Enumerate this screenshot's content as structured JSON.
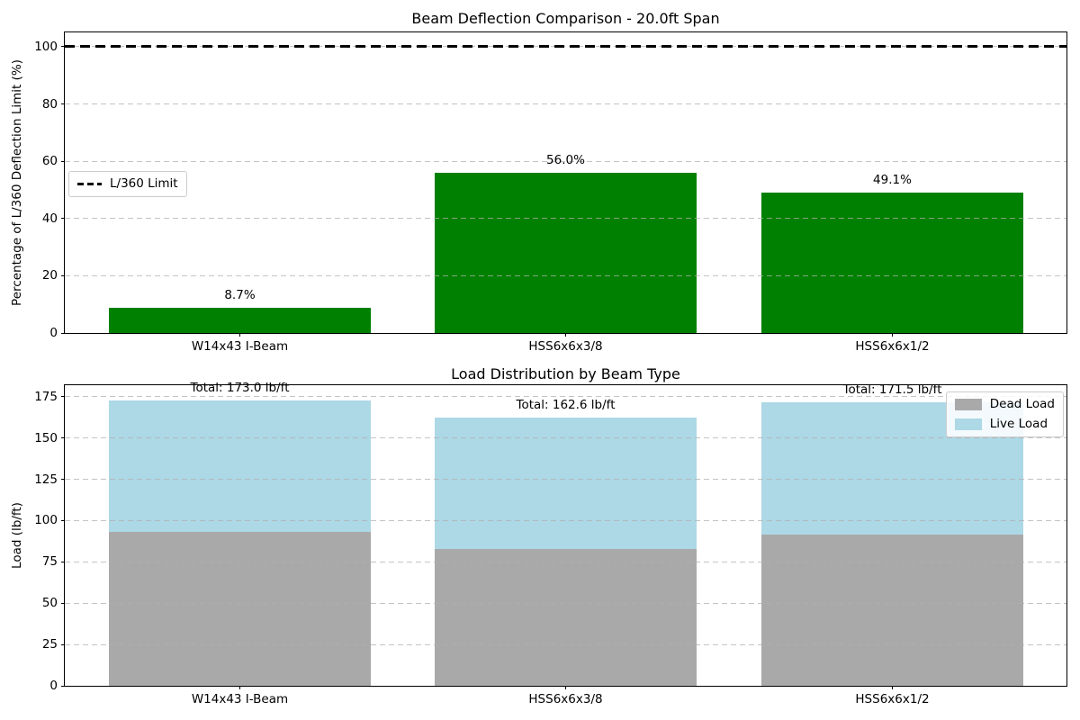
{
  "chart_data": [
    {
      "type": "bar",
      "title": "Beam Deflection Comparison - 20.0ft Span",
      "ylabel": "Percentage of L/360 Deflection Limit (%)",
      "categories": [
        "W14x43 I-Beam",
        "HSS6x6x3/8",
        "HSS6x6x1/2"
      ],
      "values": [
        8.7,
        56.0,
        49.1
      ],
      "bar_labels": [
        "8.7%",
        "56.0%",
        "49.1%"
      ],
      "bar_color": "#008000",
      "ylim": [
        0,
        105
      ],
      "yticks": [
        0,
        20,
        40,
        60,
        80,
        100
      ],
      "grid": "horizontal-dashed",
      "limit_line": {
        "value": 100,
        "color": "#000000",
        "style": "dashed",
        "legend_label": "L/360 Limit"
      },
      "legend_position": "center-left"
    },
    {
      "type": "stacked-bar",
      "title": "Load Distribution by Beam Type",
      "ylabel": "Load (lb/ft)",
      "categories": [
        "W14x43 I-Beam",
        "HSS6x6x3/8",
        "HSS6x6x1/2"
      ],
      "series": [
        {
          "name": "Dead Load",
          "color": "#a9a9a9",
          "values": [
            93.0,
            82.6,
            91.5
          ]
        },
        {
          "name": "Live Load",
          "color": "#add8e6",
          "values": [
            80.0,
            80.0,
            80.0
          ]
        }
      ],
      "totals": [
        173.0,
        162.6,
        171.5
      ],
      "total_labels": [
        "Total: 173.0 lb/ft",
        "Total: 162.6 lb/ft",
        "Total: 171.5 lb/ft"
      ],
      "ylim": [
        0,
        182
      ],
      "yticks": [
        0,
        25,
        50,
        75,
        100,
        125,
        150,
        175
      ],
      "grid": "horizontal-dashed",
      "legend_position": "top-right"
    }
  ]
}
